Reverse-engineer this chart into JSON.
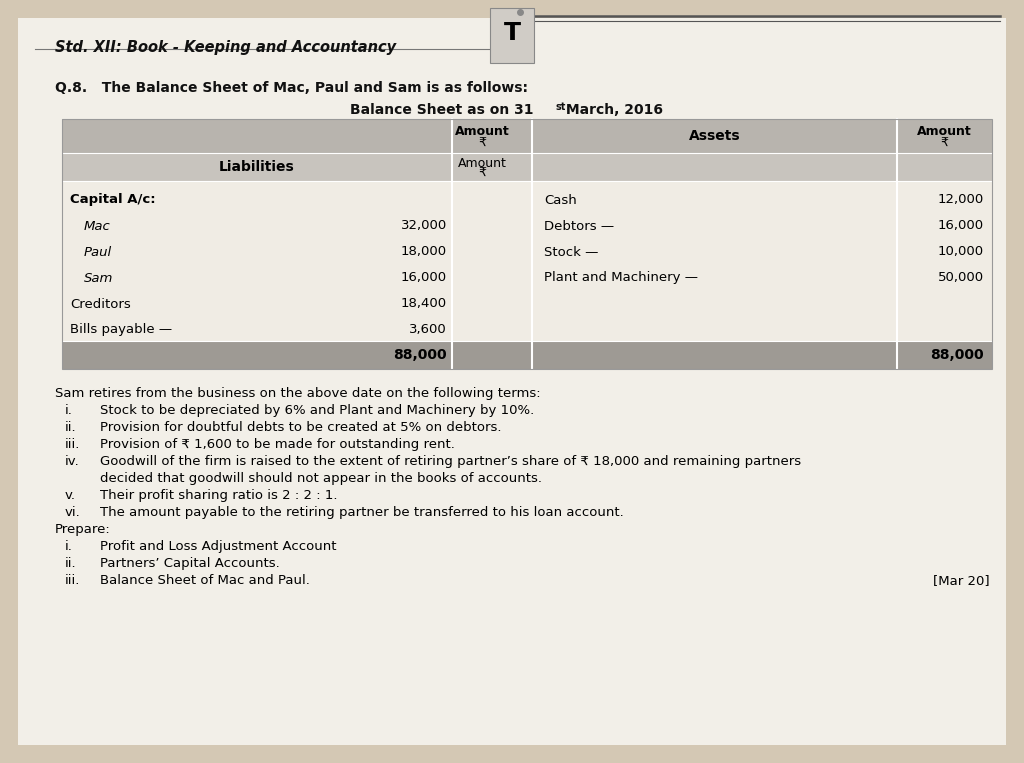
{
  "bg_color": "#d4c8b4",
  "page_bg": "#f2efe8",
  "header": "Std. XII: Book - Keeping and Accountancy",
  "question_line1": "Q.8.   The Balance Sheet of Mac, Paul and Sam is as follows:",
  "balance_sheet_title": "Balance Sheet as on 31",
  "balance_sheet_super": "st",
  "balance_sheet_end": " March, 2016",
  "col_liabilities": "Liabilities",
  "col_amount": "Amount",
  "rupee": "₹",
  "col_assets": "Assets",
  "liabilities": [
    {
      "label": "Capital A/c:",
      "value": "",
      "indent": false,
      "bold": true,
      "italic": false
    },
    {
      "label": "Mac",
      "value": "32,000",
      "indent": true,
      "bold": false,
      "italic": true
    },
    {
      "label": "Paul",
      "value": "18,000",
      "indent": true,
      "bold": false,
      "italic": true
    },
    {
      "label": "Sam",
      "value": "16,000",
      "indent": true,
      "bold": false,
      "italic": true
    },
    {
      "label": "Creditors",
      "value": "18,400",
      "indent": false,
      "bold": false,
      "italic": false
    },
    {
      "label": "Bills payable —",
      "value": "3,600",
      "indent": false,
      "bold": false,
      "italic": false
    }
  ],
  "liabilities_total": "88,000",
  "assets": [
    {
      "label": "Cash",
      "value": "12,000"
    },
    {
      "label": "Debtors —",
      "value": "16,000"
    },
    {
      "label": "Stock —",
      "value": "10,000"
    },
    {
      "label": "Plant and Machinery —",
      "value": "50,000"
    }
  ],
  "assets_total": "88,000",
  "note_intro": "Sam retires from the business on the above date on the following terms:",
  "notes": [
    [
      "i.",
      "Stock to be depreciated by 6% and Plant and Machinery by 10%."
    ],
    [
      "ii.",
      "Provision for doubtful debts to be created at 5% on debtors."
    ],
    [
      "iii.",
      "Provision of ₹ 1,600 to be made for outstanding rent."
    ],
    [
      "iv.",
      "Goodwill of the firm is raised to the extent of retiring partner’s share of ₹ 18,000 and remaining partners"
    ],
    [
      "",
      "decided that goodwill should not appear in the books of accounts."
    ],
    [
      "v.",
      "Their profit sharing ratio is 2 : 2 : 1."
    ],
    [
      "vi.",
      "The amount payable to the retiring partner be transferred to his loan account."
    ]
  ],
  "prepare_label": "Prepare:",
  "prepare_items": [
    [
      "i.",
      "Profit and Loss Adjustment Account"
    ],
    [
      "ii.",
      "Partners’ Capital Accounts."
    ],
    [
      "iii.",
      "Balance Sheet of Mac and Paul."
    ]
  ],
  "marks": "[Mar 20]",
  "hdr_gray1": "#b8b4ae",
  "hdr_gray2": "#c8c4be",
  "body_white": "#f0ece4",
  "total_gray": "#9e9a94",
  "line_color": "#888888"
}
